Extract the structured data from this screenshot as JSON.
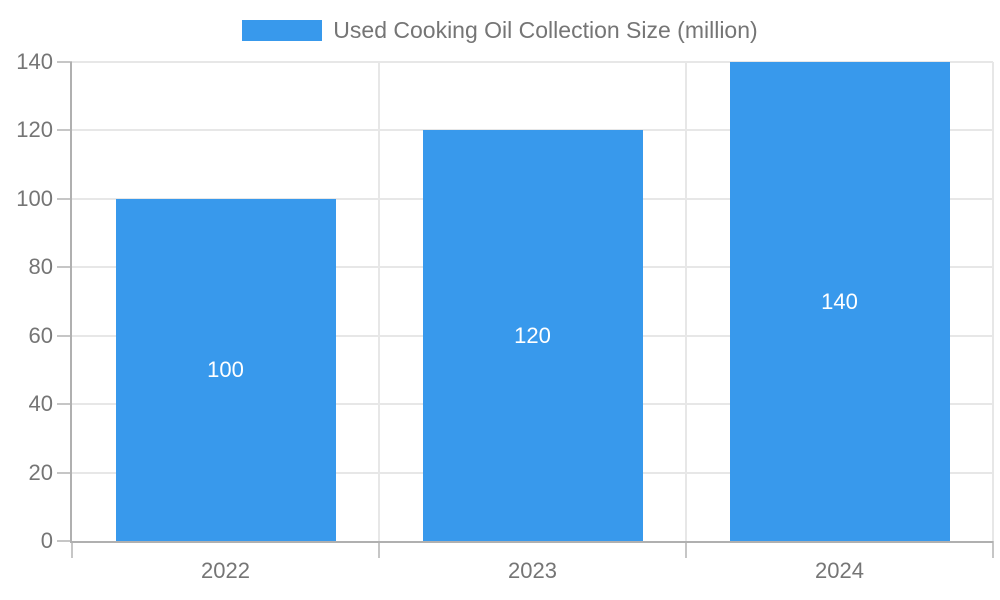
{
  "chart_data": {
    "type": "bar",
    "title": "Used Cooking Oil Collection Size (million)",
    "categories": [
      "2022",
      "2023",
      "2024"
    ],
    "values": [
      100,
      120,
      140
    ],
    "series": [
      {
        "name": "Used Cooking Oil Collection Size (million)",
        "values": [
          100,
          120,
          140
        ]
      }
    ],
    "xlabel": "",
    "ylabel": "",
    "ylim": [
      0,
      140
    ],
    "y_ticks": [
      0,
      20,
      40,
      60,
      80,
      100,
      120,
      140
    ],
    "grid": true,
    "legend_position": "top-center",
    "bar_value_labels_shown": true,
    "colors": {
      "bar": "#3899EC",
      "axis_line": "#b0b0b0",
      "gridline": "#e7e7e7",
      "tick": "#c6c6c6",
      "axis_label": "#757575",
      "legend_label": "#757575",
      "bar_label": "#ffffff",
      "background": "#ffffff"
    }
  }
}
